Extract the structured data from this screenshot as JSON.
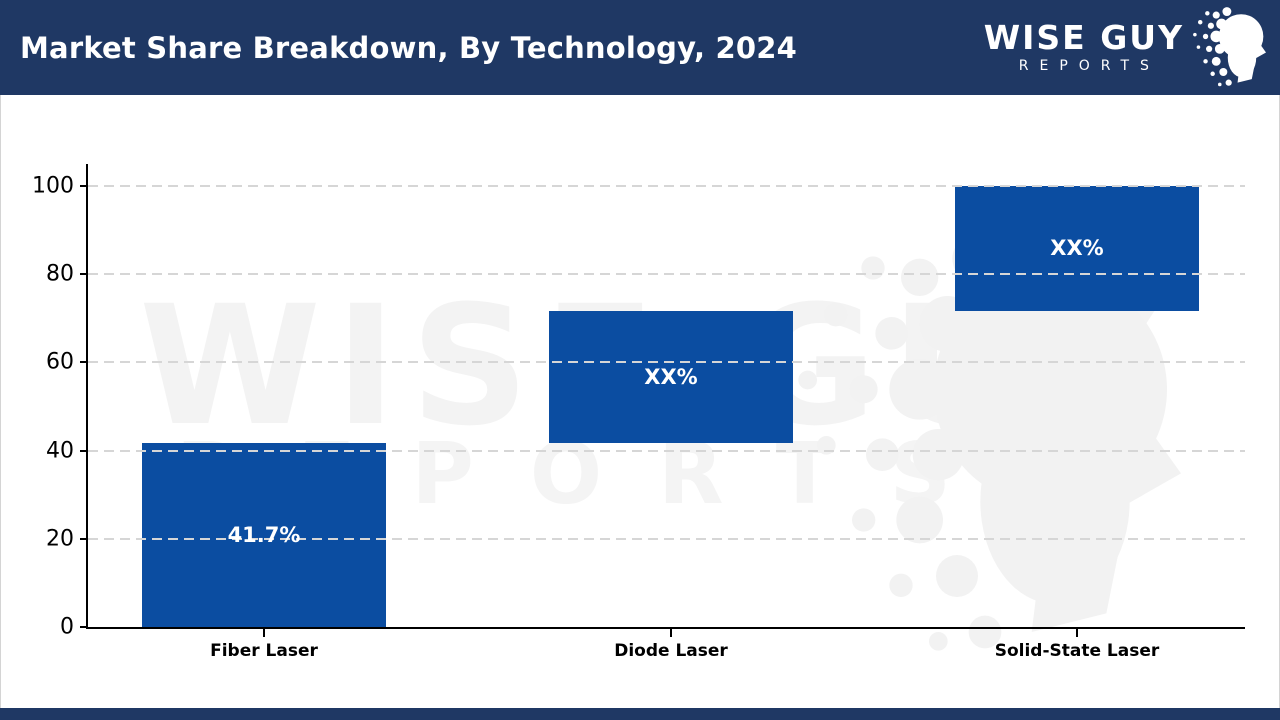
{
  "header": {
    "title": "Market Share Breakdown, By Technology, 2024",
    "background_color": "#1f3864",
    "logo": {
      "line1": "WISE GUY",
      "line2": "REPORTS"
    }
  },
  "watermark": {
    "line1": "WISE GUY",
    "line2": "REPORTS"
  },
  "chart_data": {
    "type": "bar",
    "subtype": "waterfall-stacked-percentage",
    "title": "Market Share Breakdown, By Technology, 2024",
    "categories": [
      "Fiber Laser",
      "Diode Laser",
      "Solid-State Laser"
    ],
    "segments": [
      {
        "category": "Fiber Laser",
        "start": 0,
        "end": 41.7,
        "label": "41.7%"
      },
      {
        "category": "Diode Laser",
        "start": 41.7,
        "end": 71.7,
        "label": "XX%"
      },
      {
        "category": "Solid-State Laser",
        "start": 71.7,
        "end": 100,
        "label": "XX%"
      }
    ],
    "values": [
      41.7,
      30,
      28.3
    ],
    "xlabel": "",
    "ylabel": "",
    "ylim": [
      0,
      100
    ],
    "yticks": [
      0,
      20,
      40,
      60,
      80,
      100
    ],
    "grid": "horizontal-dashed",
    "legend": "none",
    "bar_color": "#0b4da1",
    "bar_label_color": "#ffffff",
    "grid_color": "#d6d6d6",
    "axis_color": "#000000"
  },
  "colors": {
    "banner_background": "#1f3864",
    "footer_background": "#1f3864",
    "panel_background": "#ffffff",
    "watermark_gray": "#f3f3f3"
  }
}
